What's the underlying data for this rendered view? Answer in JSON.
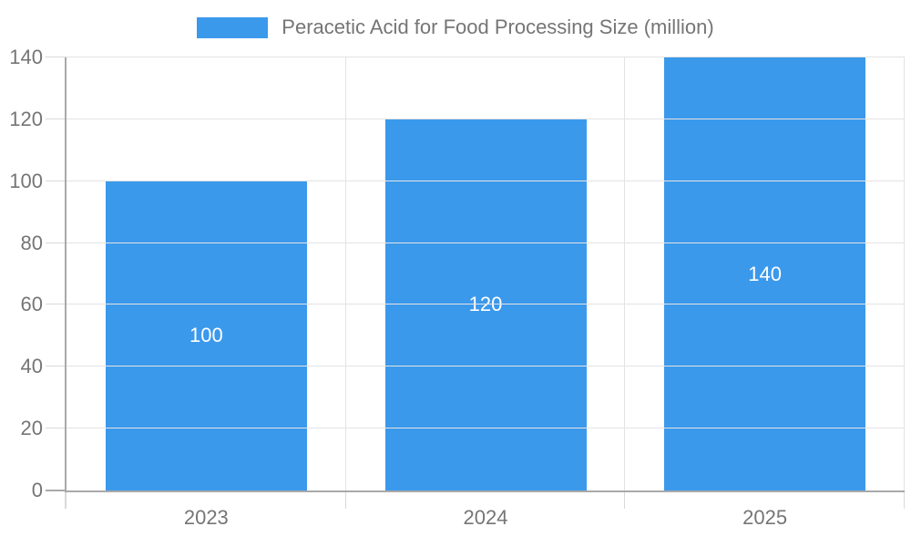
{
  "chart_data": {
    "type": "bar",
    "title": "",
    "categories": [
      "2023",
      "2024",
      "2025"
    ],
    "series": [
      {
        "name": "Peracetic Acid for Food Processing Size (million)",
        "values": [
          100,
          120,
          140
        ]
      }
    ],
    "data_labels": [
      "100",
      "120",
      "140"
    ],
    "xlabel": "",
    "ylabel": "",
    "ylim": [
      0,
      140
    ],
    "yticks": [
      0,
      20,
      40,
      60,
      80,
      100,
      120,
      140
    ],
    "grid": true,
    "legend_position": "top"
  },
  "legend": {
    "label": "Peracetic Acid for Food Processing Size (million)"
  },
  "colors": {
    "bar": "#3b99ec",
    "axis_text": "#757575",
    "bar_label_text": "#ffffff",
    "gridline": "#e3e3e3",
    "axis_line": "#a9a9a9",
    "tick": "#d9d9d9"
  }
}
